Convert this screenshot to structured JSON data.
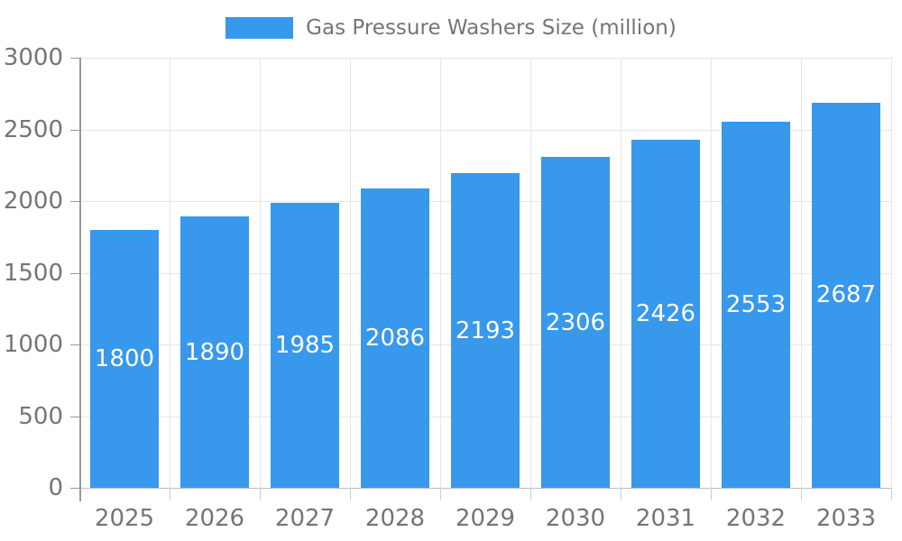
{
  "legend": {
    "label": "Gas Pressure Washers Size (million)"
  },
  "chart_data": {
    "type": "bar",
    "title": "Gas Pressure Washers Size (million)",
    "categories": [
      "2025",
      "2026",
      "2027",
      "2028",
      "2029",
      "2030",
      "2031",
      "2032",
      "2033"
    ],
    "values": [
      1800,
      1890,
      1985,
      2086,
      2193,
      2306,
      2426,
      2553,
      2687
    ],
    "xlabel": "",
    "ylabel": "",
    "ylim": [
      0,
      3000
    ],
    "yticks": [
      0,
      500,
      1000,
      1500,
      2000,
      2500,
      3000
    ],
    "grid": true,
    "legend_position": "top-center",
    "value_labels": "inside-center"
  },
  "colors": {
    "bar": "#3898EC",
    "value_label": "#ffffff",
    "axis_text": "#757575",
    "gridline": "#e6e6e6",
    "axis_line": "#999999",
    "baseline": "#bdbdbd",
    "x_tick": "#cccccc"
  }
}
